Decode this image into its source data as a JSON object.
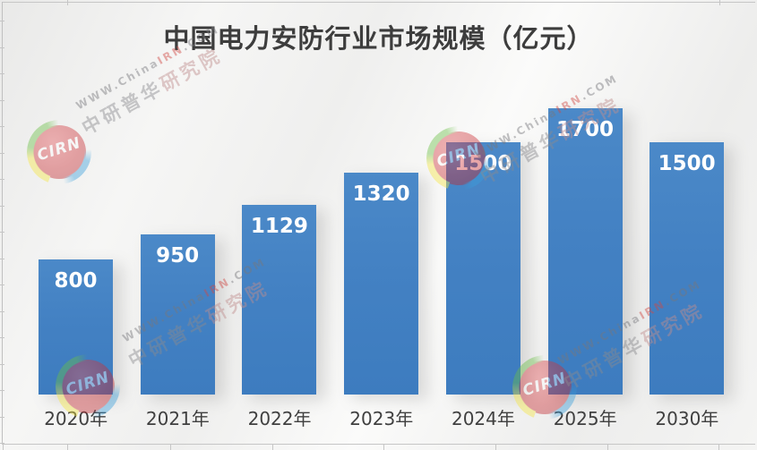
{
  "title": "中国电力安防行业市场规模（亿元）",
  "chart_data": {
    "type": "bar",
    "title": "中国电力安防行业市场规模（亿元）",
    "categories": [
      "2020年",
      "2021年",
      "2022年",
      "2023年",
      "2024年",
      "2025年",
      "2030年"
    ],
    "values": [
      800,
      950,
      1129,
      1320,
      1500,
      1700,
      1500
    ],
    "unit_label": "亿元",
    "xlabel": "",
    "ylabel": "",
    "ylim": [
      0,
      1800
    ],
    "grid": false,
    "legend": false,
    "bar_color": "#4383C4",
    "value_label_color": "#FFFFFF"
  },
  "watermark": {
    "logo_text": "CIRN",
    "url_prefix": "WWW.China",
    "url_accent": "IRN",
    "url_suffix": ".COM",
    "cn_prefix": "中研普华",
    "cn_suffix": "研究院"
  },
  "colors": {
    "bar": "#4383C4",
    "title_text": "#3D3D3D",
    "axis_line": "#C6C6C6",
    "category_text": "#404040",
    "watermark_gray": "#8B8B8F",
    "watermark_red": "#D04A45",
    "logo_red": "#CB2D33"
  }
}
